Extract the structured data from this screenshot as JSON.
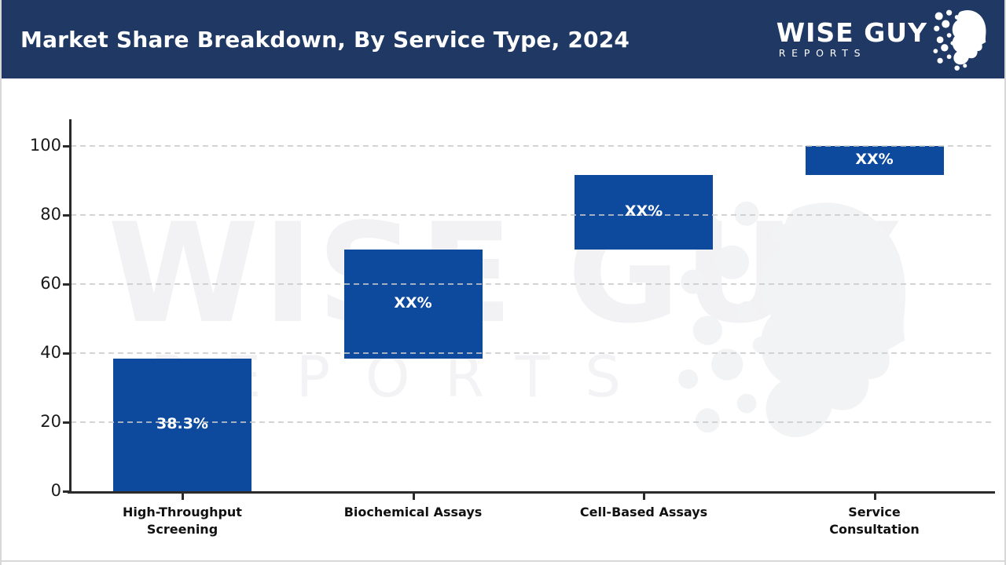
{
  "header": {
    "title": "Market Share Breakdown, By Service Type, 2024",
    "logo_line1": "WISE GUY",
    "logo_line2": "REPORTS"
  },
  "watermark": {
    "line1": "WISE GUY",
    "line2": "REPORTS"
  },
  "chart_data": {
    "type": "bar",
    "subtype": "waterfall",
    "title": "Market Share Breakdown, By Service Type, 2024",
    "categories": [
      "High-Throughput Screening",
      "Biochemical Assays",
      "Cell-Based Assays",
      "Service Consultation"
    ],
    "category_lines": [
      [
        "High-Throughput",
        "Screening"
      ],
      [
        "Biochemical Assays"
      ],
      [
        "Cell-Based Assays"
      ],
      [
        "Service",
        "Consultation"
      ]
    ],
    "segments": [
      {
        "category": "High-Throughput Screening",
        "start": 0,
        "end": 38.3,
        "label": "38.3%"
      },
      {
        "category": "Biochemical Assays",
        "start": 38.3,
        "end": 70.0,
        "label": "XX%"
      },
      {
        "category": "Cell-Based Assays",
        "start": 70.0,
        "end": 91.5,
        "label": "XX%"
      },
      {
        "category": "Service Consultation",
        "start": 91.5,
        "end": 100.0,
        "label": "XX%"
      }
    ],
    "yticks": [
      0,
      20,
      40,
      60,
      80,
      100
    ],
    "ylim": [
      0,
      107
    ],
    "xlabel": "",
    "ylabel": "",
    "legend": "none",
    "grid": "horizontal-dashed",
    "colors": {
      "bar": "#0d4a9e",
      "header_bg": "#1f3864",
      "grid": "#c9c9c9",
      "spine": "#2b2b2b",
      "bar_label": "#ffffff",
      "watermark": "#f2f2f4"
    }
  }
}
